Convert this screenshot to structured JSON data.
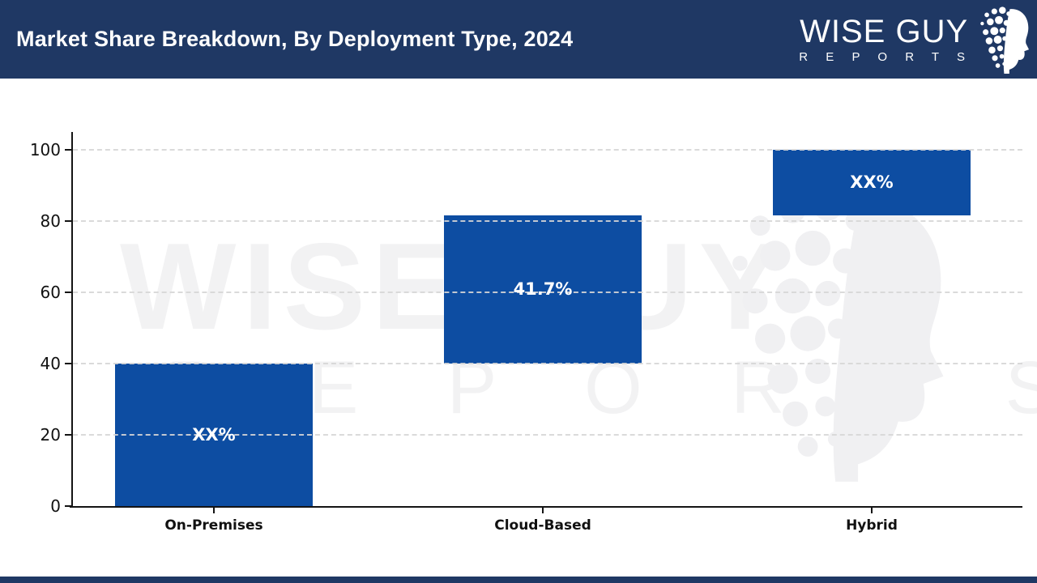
{
  "header": {
    "title": "Market Share Breakdown, By Deployment Type, 2024",
    "background": "#1F3864",
    "logo": {
      "line1": "WISE GUY",
      "line2": "R E P O R T S"
    }
  },
  "watermark": {
    "line1": "WISE GUY",
    "line2": "R E P O R T S"
  },
  "chart_data": {
    "type": "bar",
    "subtype": "floating-waterfall",
    "title": "Market Share Breakdown, By Deployment Type, 2024",
    "categories": [
      "On-Premises",
      "Cloud-Based",
      "Hybrid"
    ],
    "series": [
      {
        "name": "Market Share %",
        "segments": [
          {
            "category": "On-Premises",
            "start": 0,
            "end": 40,
            "label": "XX%"
          },
          {
            "category": "Cloud-Based",
            "start": 40,
            "end": 81.7,
            "label": "41.7%"
          },
          {
            "category": "Hybrid",
            "start": 81.7,
            "end": 100,
            "label": "XX%"
          }
        ]
      }
    ],
    "xlabel": "",
    "ylabel": "",
    "ylim": [
      0,
      105
    ],
    "yticks": [
      0,
      20,
      40,
      60,
      80,
      100
    ],
    "grid": "horizontal-dashed",
    "legend": "none",
    "bar_color": "#0D4DA2",
    "bar_label_color": "#ffffff",
    "axis_color": "#141414",
    "grid_color": "#d6d6d6"
  },
  "colors": {
    "header_navy": "#1F3864",
    "bar_blue": "#0D4DA2",
    "watermark_gray": "#f2f2f3",
    "background": "#ffffff"
  }
}
